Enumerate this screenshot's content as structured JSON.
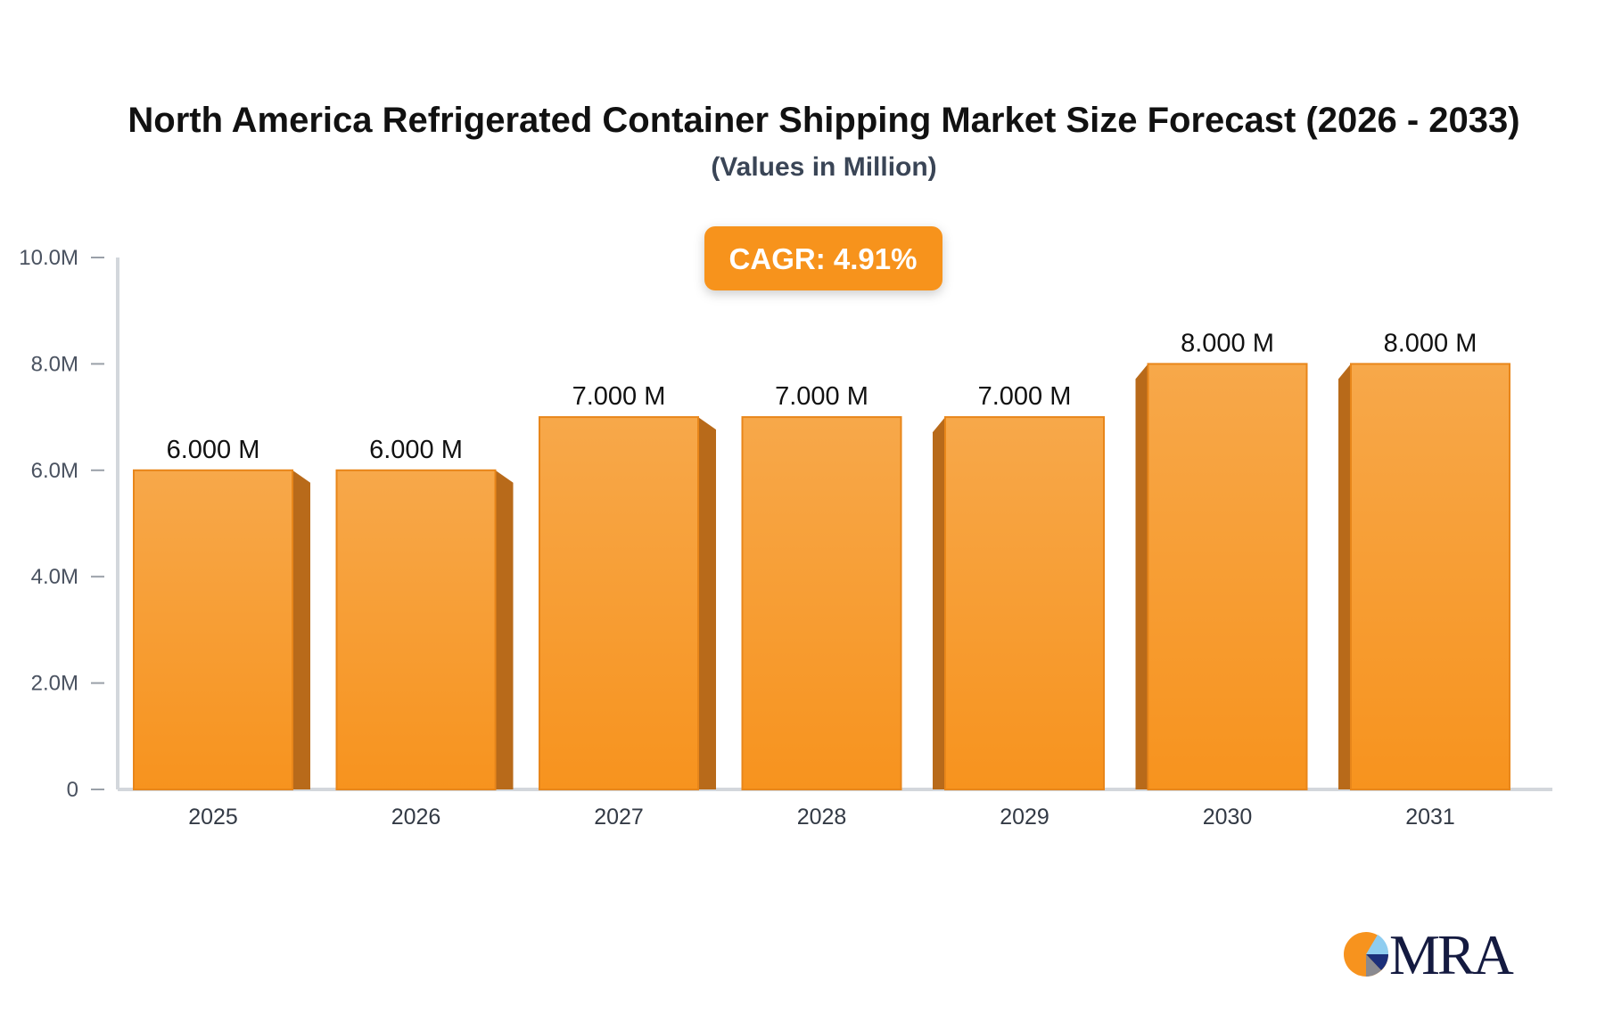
{
  "chart_data": {
    "type": "bar",
    "title": "North America Refrigerated Container Shipping Market Size Forecast (2026 - 2033)",
    "subtitle": "(Values in Million)",
    "categories": [
      "2025",
      "2026",
      "2027",
      "2028",
      "2029",
      "2030",
      "2031"
    ],
    "values": [
      6.0,
      6.0,
      7.0,
      7.0,
      7.0,
      8.0,
      8.0
    ],
    "data_labels": [
      "6.000 M",
      "6.000 M",
      "7.000 M",
      "7.000 M",
      "7.000 M",
      "8.000 M",
      "8.000 M"
    ],
    "ylim": [
      0,
      10
    ],
    "yticks": [
      0,
      2,
      4,
      6,
      8,
      10
    ],
    "ytick_labels": [
      "0",
      "2.0M",
      "4.0M",
      "6.0M",
      "8.0M",
      "10.0M"
    ],
    "xlabel": "",
    "ylabel": "",
    "grid": false,
    "bar_color": "#f7a443",
    "bar_side_color": "#b86a1a",
    "annotation": "CAGR: 4.91%",
    "annotation_color": "#f7931e"
  },
  "logo": {
    "text": "MRA",
    "text_color": "#141a40"
  }
}
